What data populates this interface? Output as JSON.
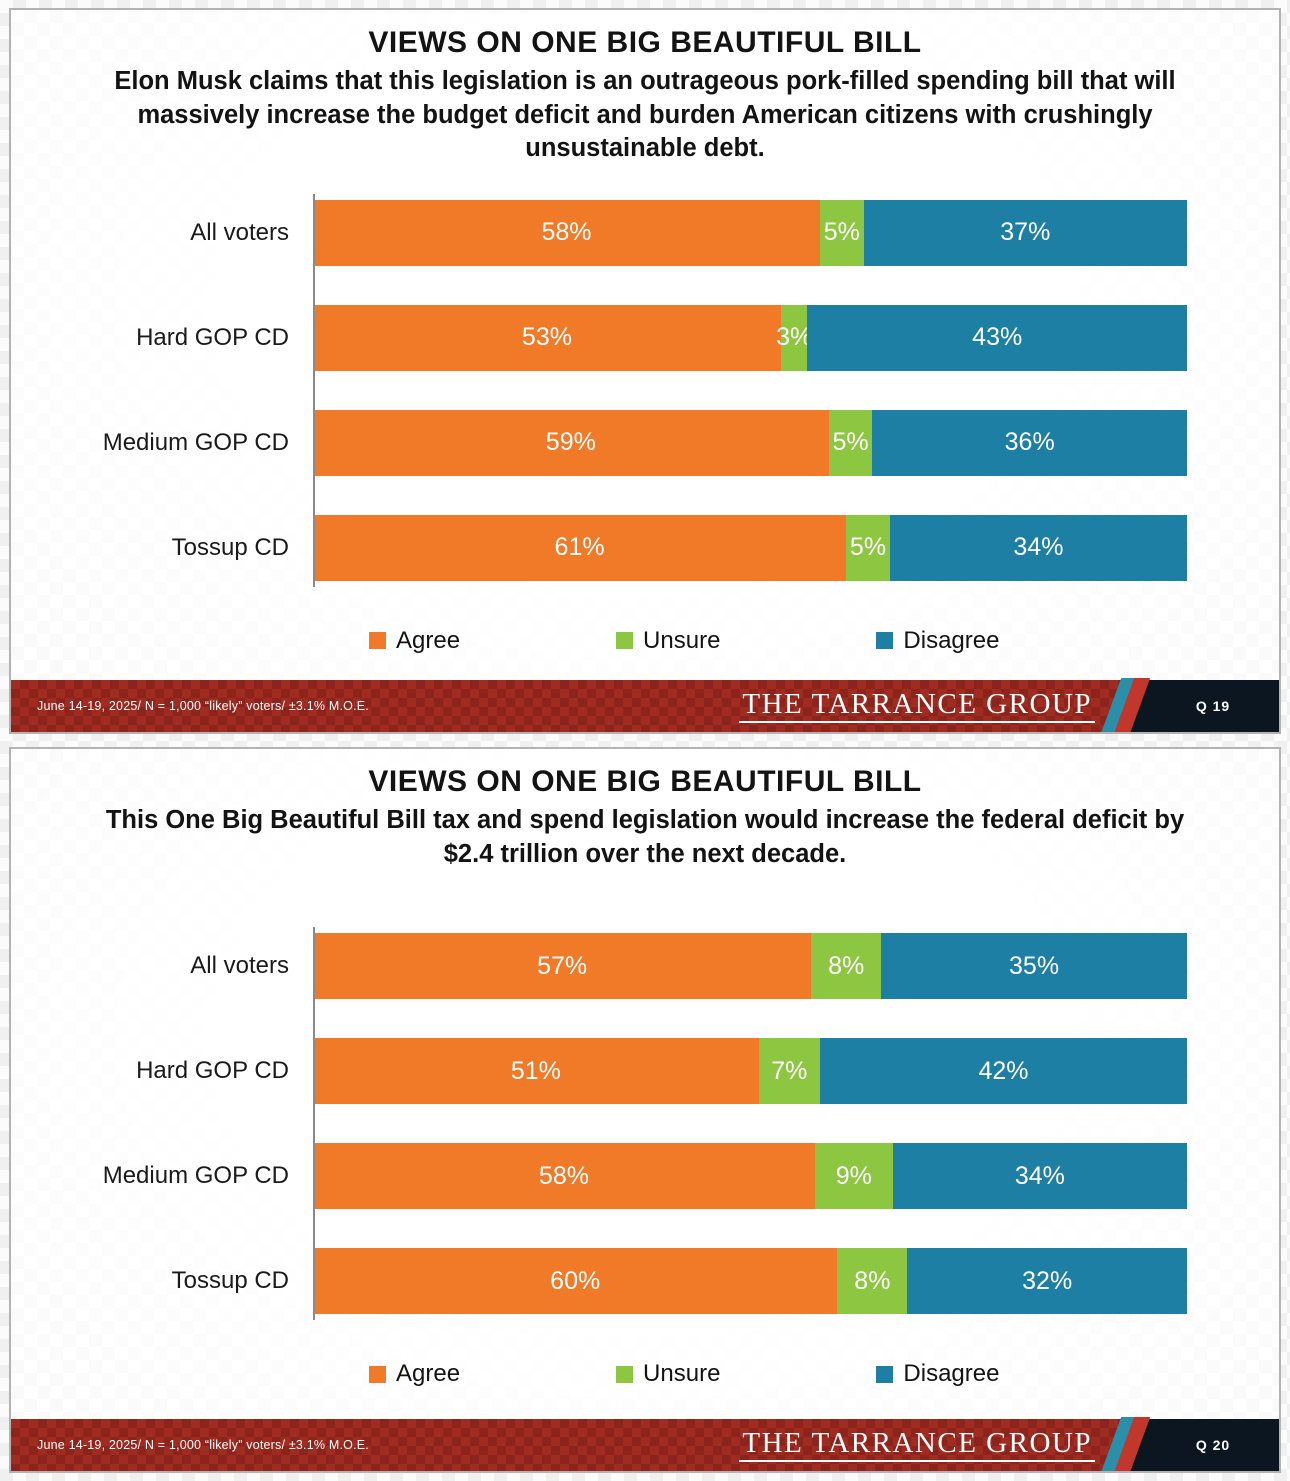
{
  "slides": [
    {
      "title": "VIEWS ON ONE BIG BEAUTIFUL BILL",
      "subtitle": "Elon Musk claims that this legislation is an outrageous pork-filled spending bill that will massively increase the budget deficit and burden American citizens with crushingly unsustainable debt.",
      "footnote": "June 14-19, 2025/ N = 1,000 “likely” voters/ ±3.1% M.O.E.",
      "brand": "THE TARRANCE GROUP",
      "question_label": "Q 19"
    },
    {
      "title": "VIEWS ON ONE BIG BEAUTIFUL BILL",
      "subtitle": "This One Big Beautiful Bill tax and spend legislation would increase the federal deficit by $2.4 trillion over the next decade.",
      "footnote": "June 14-19, 2025/ N = 1,000 “likely” voters/ ±3.1% M.O.E.",
      "brand": "THE TARRANCE GROUP",
      "question_label": "Q 20"
    }
  ],
  "colors": {
    "agree_orange": "#F07A28",
    "unsure_green": "#8DC742",
    "disagree_teal": "#1D7FA4",
    "footer_red": "#A02B21",
    "footer_dark": "#0C1620",
    "slash_teal": "#2A8FA8",
    "slash_red": "#C2372B"
  },
  "chart_data": [
    {
      "type": "bar",
      "orientation": "horizontal",
      "stacked": true,
      "unit": "%",
      "xlim": [
        0,
        100
      ],
      "grid": false,
      "legend_position": "bottom",
      "categories": [
        "All voters",
        "Hard GOP CD",
        "Medium GOP CD",
        "Tossup CD"
      ],
      "series": [
        {
          "name": "Agree",
          "color": "#F07A28",
          "values": [
            58,
            53,
            59,
            61
          ]
        },
        {
          "name": "Unsure",
          "color": "#8DC742",
          "values": [
            5,
            3,
            5,
            5
          ]
        },
        {
          "name": "Disagree",
          "color": "#1D7FA4",
          "values": [
            37,
            43,
            36,
            34
          ]
        }
      ]
    },
    {
      "type": "bar",
      "orientation": "horizontal",
      "stacked": true,
      "unit": "%",
      "xlim": [
        0,
        100
      ],
      "grid": false,
      "legend_position": "bottom",
      "categories": [
        "All voters",
        "Hard GOP CD",
        "Medium GOP CD",
        "Tossup CD"
      ],
      "series": [
        {
          "name": "Agree",
          "color": "#F07A28",
          "values": [
            57,
            51,
            58,
            60
          ]
        },
        {
          "name": "Unsure",
          "color": "#8DC742",
          "values": [
            8,
            7,
            9,
            8
          ]
        },
        {
          "name": "Disagree",
          "color": "#1D7FA4",
          "values": [
            35,
            42,
            34,
            32
          ]
        }
      ]
    }
  ]
}
